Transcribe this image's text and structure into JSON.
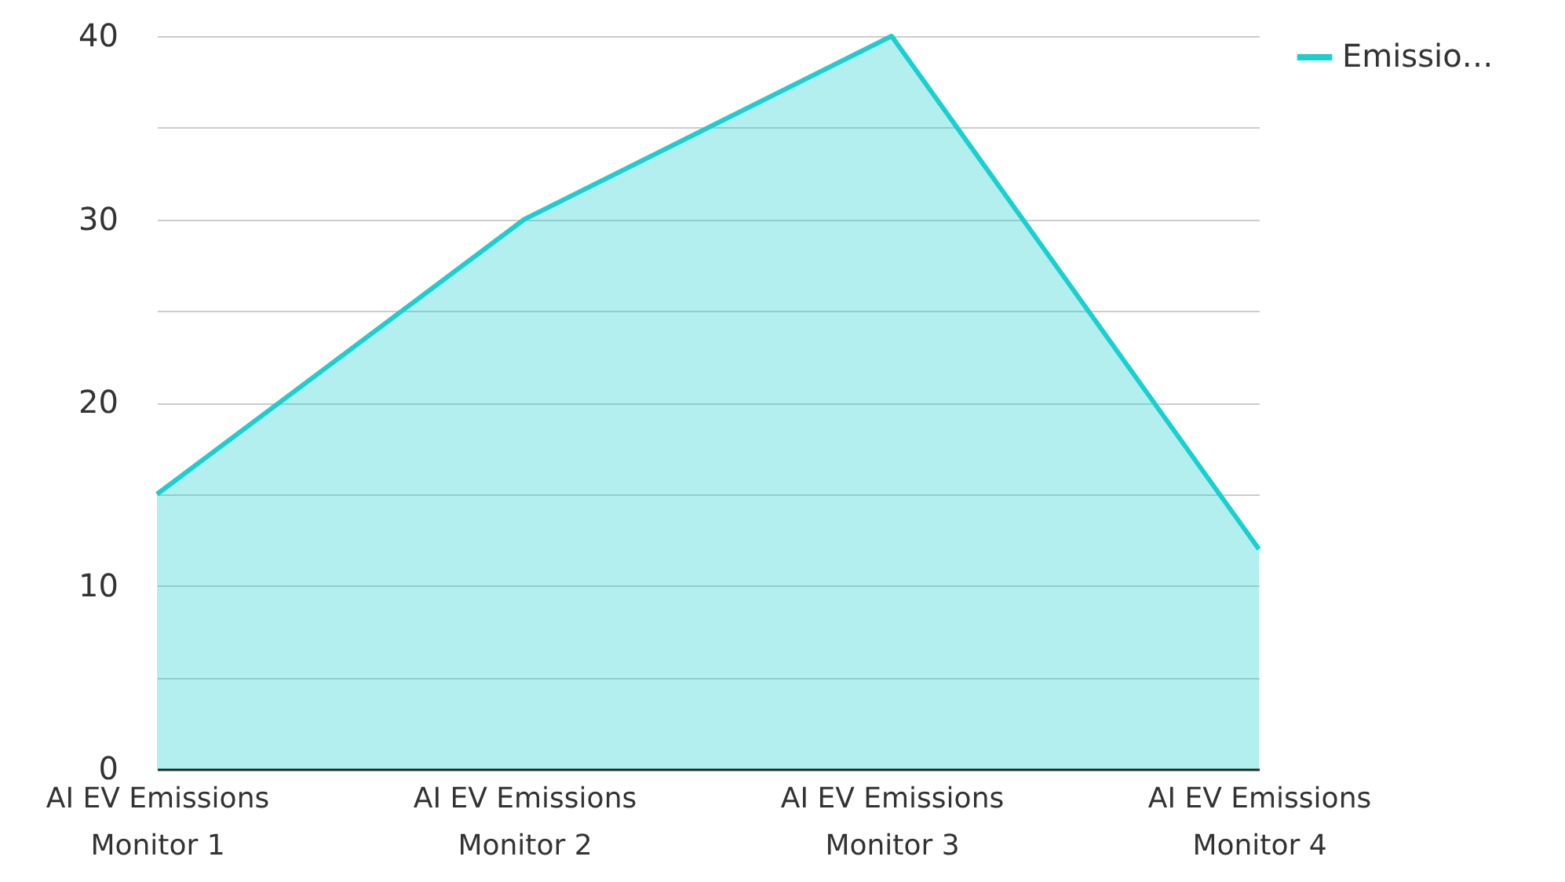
{
  "chart_data": {
    "type": "area",
    "categories": [
      "AI EV Emissions Monitor 1",
      "AI EV Emissions Monitor 2",
      "AI EV Emissions Monitor 3",
      "AI EV Emissions Monitor 4"
    ],
    "series": [
      {
        "name": "Emissio…",
        "color": "#1ccfcf",
        "values": [
          15,
          30,
          40,
          12
        ]
      }
    ],
    "ylim": [
      0,
      40
    ],
    "yticks": [
      0,
      {
        "value": 5,
        "label": null
      },
      10,
      {
        "value": 15,
        "label": null
      },
      20,
      {
        "value": 25,
        "label": null
      },
      30,
      {
        "value": 35,
        "label": null
      },
      40
    ],
    "grid": "y",
    "legend": "top right",
    "line_style": "solid",
    "marker": "none"
  }
}
